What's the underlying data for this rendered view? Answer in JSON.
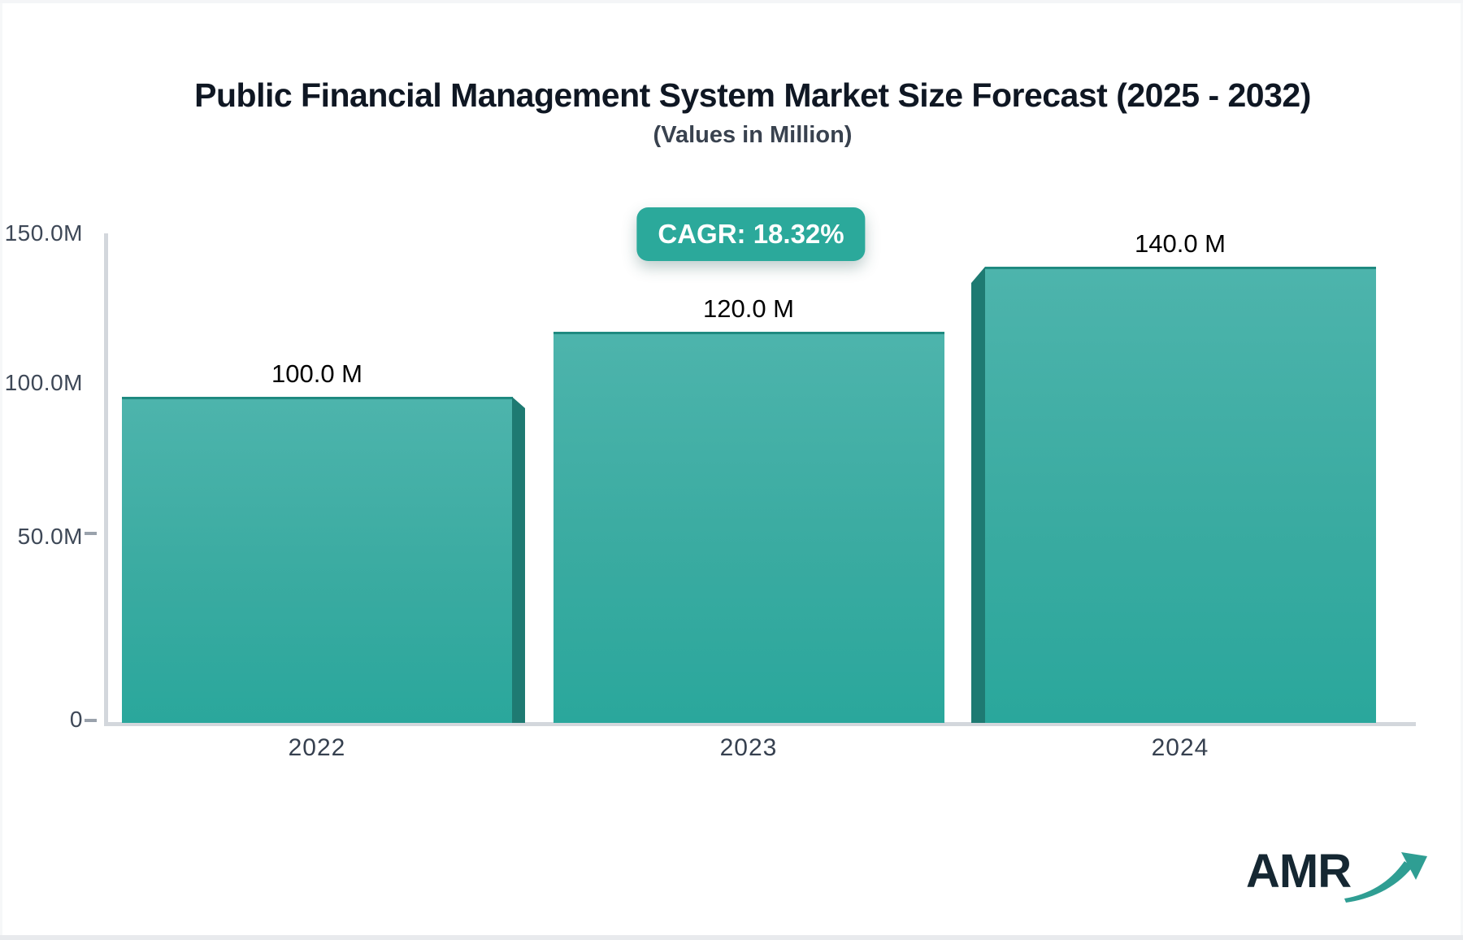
{
  "header": {
    "title": "Public Financial Management System Market Size Forecast (2025 - 2032)",
    "subtitle": "(Values in Million)",
    "cagr_label": "CAGR: 18.32%"
  },
  "chart_data": {
    "type": "bar",
    "title": "Public Financial Management System Market Size Forecast (2025 - 2032)",
    "subtitle": "(Values in Million)",
    "cagr_pct": 18.32,
    "categories": [
      "2022",
      "2023",
      "2024"
    ],
    "values": [
      100.0,
      120.0,
      140.0
    ],
    "value_labels": [
      "100.0 M",
      "120.0 M",
      "140.0 M"
    ],
    "unit": "Million",
    "xlabel": "",
    "ylabel": "",
    "ylim": [
      0,
      150
    ],
    "y_tick_labels": [
      "150.0M",
      "100.0M",
      "50.0M",
      "0"
    ],
    "grid": false,
    "legend_position": "none",
    "bar_color_top": "#4db4ac",
    "bar_color_bottom": "#2aa79c",
    "bar_edge_color": "#1f8a80",
    "bar_side_color": "#1e7a72"
  },
  "axis": {
    "y_ticks": [
      "150.0M",
      "100.0M",
      "50.0M",
      "0"
    ]
  },
  "branding": {
    "logo_text": "AMR",
    "logo_text_color": "#152732",
    "logo_arrow_color": "#2f9e93"
  },
  "colors": {
    "accent_teal": "#2ba99b",
    "axis_line": "#d3d7dc",
    "title_color": "#0f1723"
  }
}
